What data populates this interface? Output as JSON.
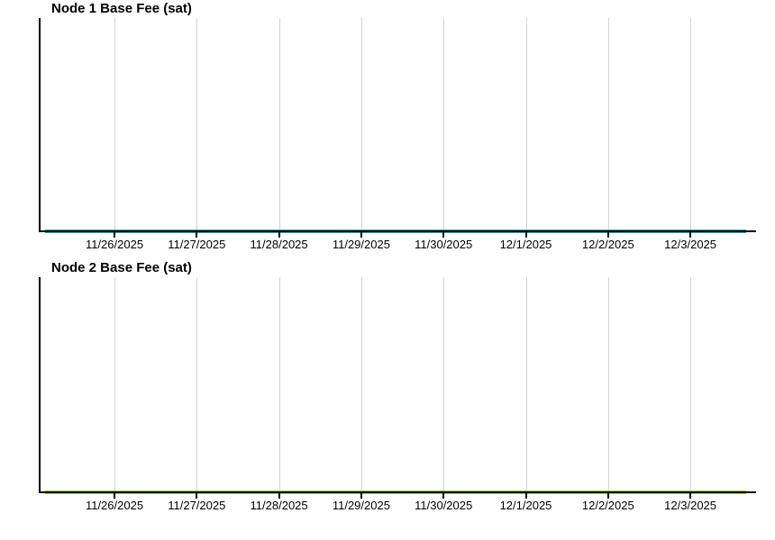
{
  "chart_data": [
    {
      "type": "line",
      "title": "Node 1 Base Fee (sat)",
      "x": [
        "11/26/2025",
        "11/27/2025",
        "11/28/2025",
        "11/29/2025",
        "11/30/2025",
        "12/1/2025",
        "12/2/2025",
        "12/3/2025"
      ],
      "series": [
        {
          "name": "Node 1 Base Fee (sat)",
          "values": [
            0,
            0,
            0,
            0,
            0,
            0,
            0,
            0
          ]
        }
      ],
      "line_color": "#2fa9a5",
      "xlabel": "",
      "ylabel": "",
      "grid": "vertical",
      "legend": "none"
    },
    {
      "type": "line",
      "title": "Node 2 Base Fee (sat)",
      "x": [
        "11/26/2025",
        "11/27/2025",
        "11/28/2025",
        "11/29/2025",
        "11/30/2025",
        "12/1/2025",
        "12/2/2025",
        "12/3/2025"
      ],
      "series": [
        {
          "name": "Node 2 Base Fee (sat)",
          "values": [
            0,
            0,
            0,
            0,
            0,
            0,
            0,
            0
          ]
        }
      ],
      "line_color": "#a3ce3b",
      "xlabel": "",
      "ylabel": "",
      "grid": "vertical",
      "legend": "none"
    }
  ],
  "colors": {
    "background": "#ffffff",
    "axis": "#000000",
    "gridline": "#d4d4d4",
    "node1_line": "#2fa9a5",
    "node2_line": "#a3ce3b"
  }
}
